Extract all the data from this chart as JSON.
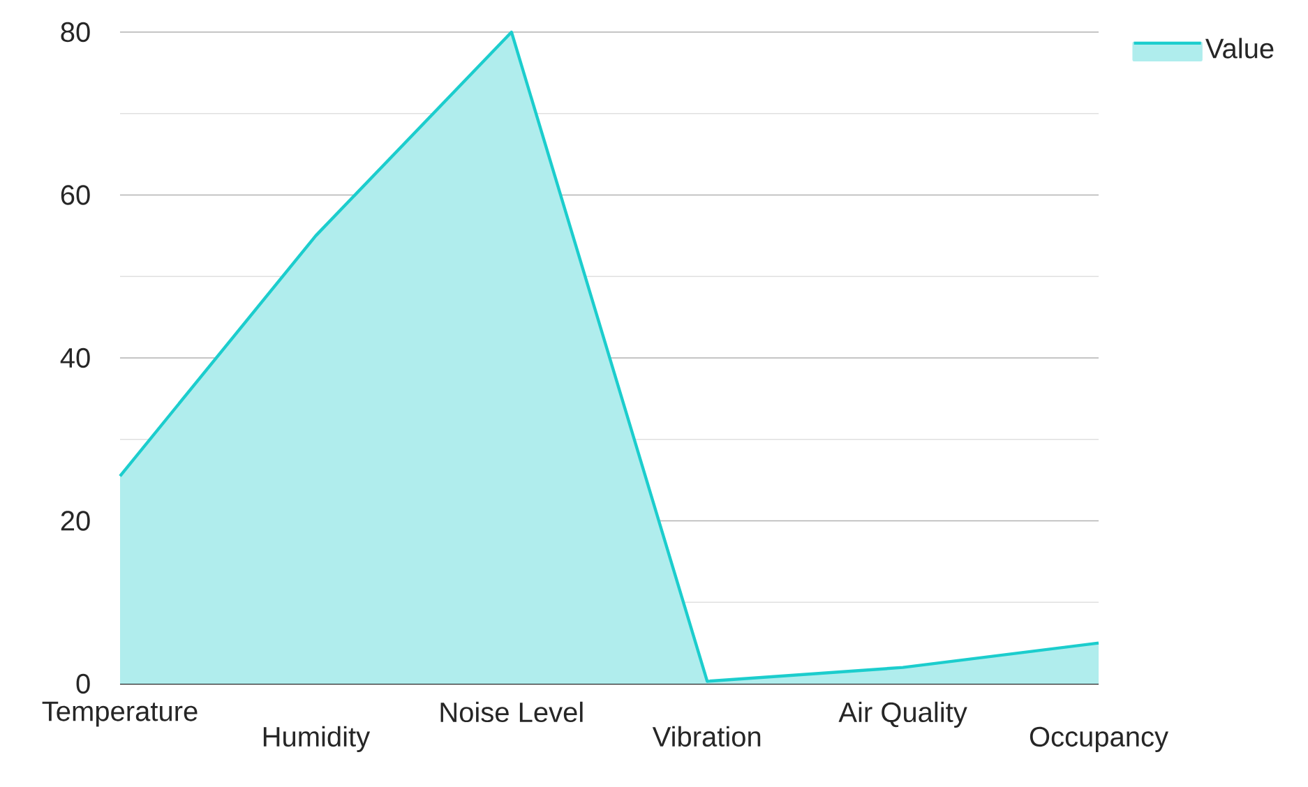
{
  "chart_data": {
    "type": "area",
    "categories": [
      "Temperature",
      "Humidity",
      "Noise Level",
      "Vibration",
      "Air Quality",
      "Occupancy"
    ],
    "series": [
      {
        "name": "Value",
        "color": "#1ccdcd",
        "values": [
          25.5,
          55,
          80,
          0.3,
          2,
          5
        ]
      }
    ],
    "ylim": [
      0,
      80
    ],
    "yticks": [
      0,
      {
        "value": 10,
        "label": null
      },
      20,
      {
        "value": 30,
        "label": null
      },
      40,
      {
        "value": 50,
        "label": null
      },
      60,
      {
        "value": 70,
        "label": null
      },
      80
    ],
    "grid": "y",
    "legend": "top right"
  }
}
